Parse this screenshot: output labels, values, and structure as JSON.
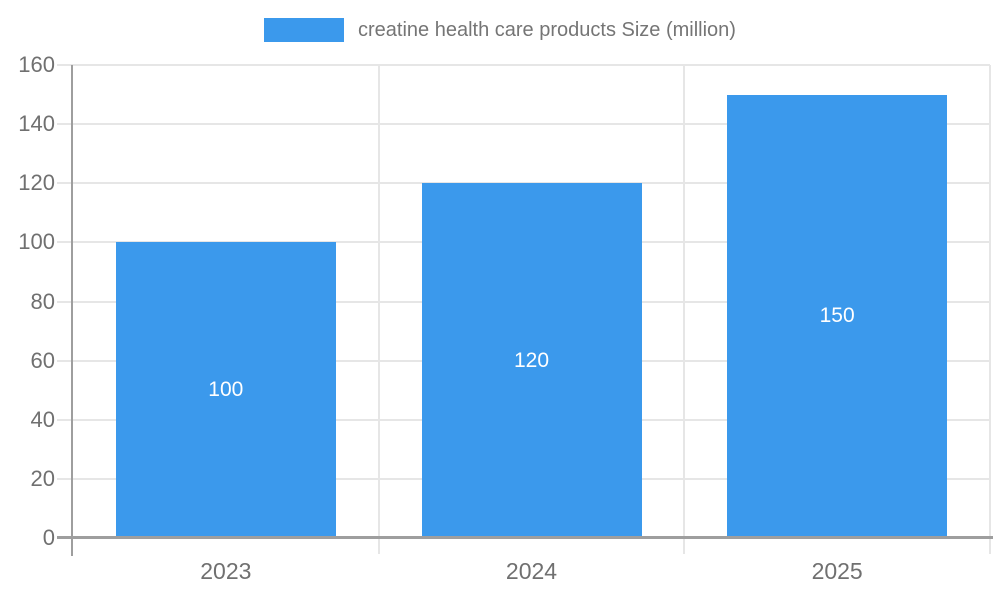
{
  "chart_data": {
    "type": "bar",
    "title": "",
    "categories": [
      "2023",
      "2024",
      "2025"
    ],
    "series": [
      {
        "name": "creatine health care products Size (million)",
        "values": [
          100,
          120,
          150
        ]
      }
    ],
    "data_labels": [
      "100",
      "120",
      "150"
    ],
    "xlabel": "",
    "ylabel": "",
    "ylim": [
      0,
      160
    ],
    "ytick_step": 20,
    "yticks": [
      0,
      20,
      40,
      60,
      80,
      100,
      120,
      140,
      160
    ],
    "grid": true,
    "legend_position": "top-center"
  },
  "legend": {
    "label": "creatine health care products Size (million)"
  },
  "colors": {
    "bar": "#3B99EC",
    "grid": "#e6e6e6",
    "axis": "#9e9e9e",
    "tick_label": "#707070",
    "legend_text": "#757575",
    "data_label": "#ffffff",
    "background": "#ffffff"
  }
}
